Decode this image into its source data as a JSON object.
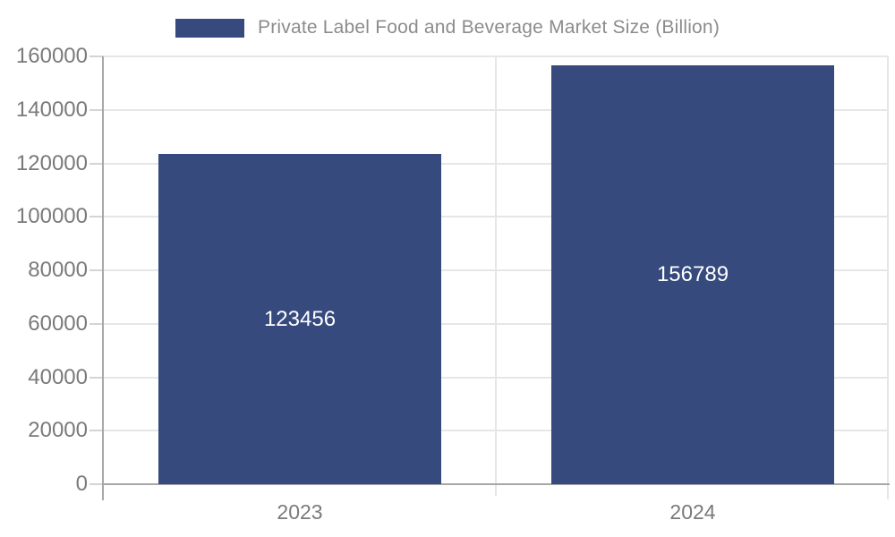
{
  "legend": {
    "series_label": "Private Label Food and Beverage Market Size (Billion)"
  },
  "colors": {
    "bar": "#364a7e",
    "grid": "#e6e6e6",
    "axis": "#a8a8a8",
    "y_tick": "#d4d4d4",
    "axis_label": "#7a7a7a",
    "title": "#8c8c8c",
    "bar_label": "#ffffff",
    "background": "#ffffff"
  },
  "chart_data": {
    "type": "bar",
    "title": "Private Label Food and Beverage Market Size (Billion)",
    "categories": [
      "2023",
      "2024"
    ],
    "series": [
      {
        "name": "Private Label Food and Beverage Market Size (Billion)",
        "values": [
          123456,
          156789
        ]
      }
    ],
    "bar_labels": [
      "123456",
      "156789"
    ],
    "xlabel": "",
    "ylabel": "",
    "ylim": [
      0,
      160000
    ],
    "yticks": [
      0,
      20000,
      40000,
      60000,
      80000,
      100000,
      120000,
      140000,
      160000
    ],
    "grid": true,
    "legend_position": "top"
  }
}
